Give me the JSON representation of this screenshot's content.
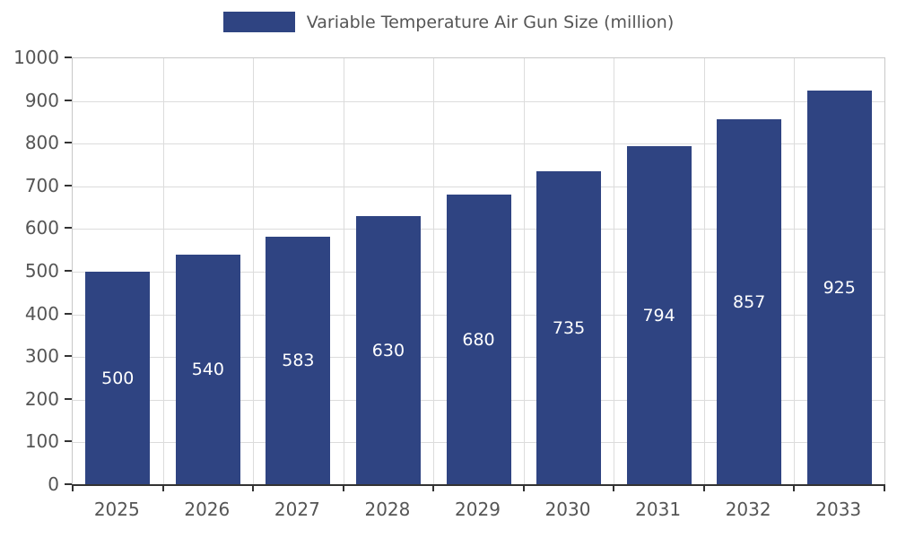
{
  "chart_data": {
    "type": "bar",
    "title": "Variable Temperature Air Gun Size (million)",
    "legend": "Variable Temperature Air Gun Size (million)",
    "categories": [
      "2025",
      "2026",
      "2027",
      "2028",
      "2029",
      "2030",
      "2031",
      "2032",
      "2033"
    ],
    "values": [
      500,
      540,
      583,
      630,
      680,
      735,
      794,
      857,
      925
    ],
    "xlabel": "",
    "ylabel": "",
    "ylim": [
      0,
      1000
    ],
    "ytick_step": 100,
    "ytick_labels": [
      "0",
      "100",
      "200",
      "300",
      "400",
      "500",
      "600",
      "700",
      "800",
      "900",
      "1000"
    ],
    "grid": true,
    "legend_position": "top",
    "bar_color": "#2F4482",
    "value_label_color": "#ffffff",
    "axis_text_color": "#555555",
    "grid_color": "#dcdcdc",
    "axis_line_color": "#333333"
  }
}
